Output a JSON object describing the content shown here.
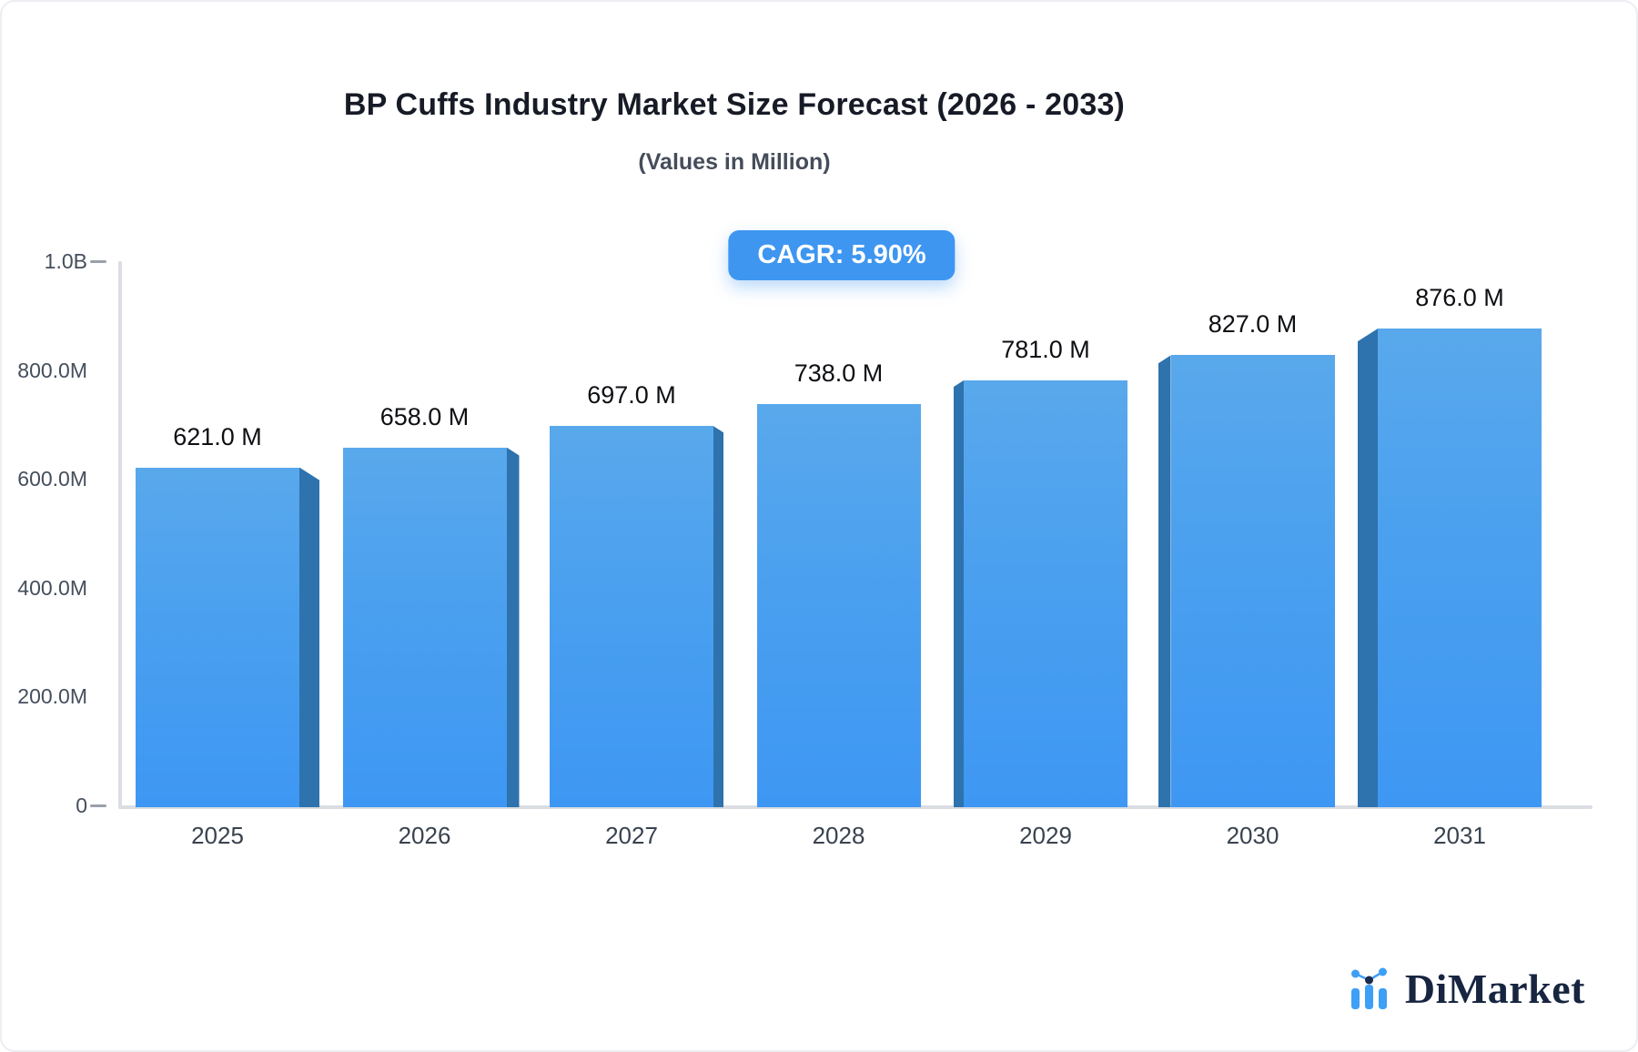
{
  "header": {
    "title": "BP Cuffs Industry Market Size Forecast (2026 - 2033)",
    "subtitle": "(Values in Million)",
    "cagr_badge": "CAGR: 5.90%"
  },
  "colors": {
    "bar_face_top": "#59a8ec",
    "bar_face_bottom": "#3e97f3",
    "bar_side": "#2e72ae",
    "badge_bg": "#3e96f0",
    "axis": "#dadde2",
    "logo_blue": "#3d9ff6",
    "logo_navy": "#172540"
  },
  "logo": {
    "text": "DiMarket",
    "icon": "mini-bar-line-chart-icon"
  },
  "chart_data": {
    "type": "bar",
    "title": "BP Cuffs Industry Market Size Forecast (2026 - 2033)",
    "subtitle": "(Values in Million)",
    "cagr_percent": 5.9,
    "categories": [
      "2025",
      "2026",
      "2027",
      "2028",
      "2029",
      "2030",
      "2031"
    ],
    "values": [
      621,
      658,
      697,
      738,
      781,
      827,
      876
    ],
    "value_labels": [
      "621.0 M",
      "658.0 M",
      "697.0 M",
      "738.0 M",
      "781.0 M",
      "827.0 M",
      "876.0 M"
    ],
    "unit": "Million USD",
    "ylim": [
      0,
      1000
    ],
    "y_tick_labels": [
      "1.0B",
      "800.0M",
      "600.0M",
      "400.0M",
      "200.0M",
      "0"
    ],
    "y_tick_values": [
      1000,
      800,
      600,
      400,
      200,
      0
    ],
    "grid": false,
    "legend": false,
    "bar_style": "3d-perspective-blue"
  }
}
